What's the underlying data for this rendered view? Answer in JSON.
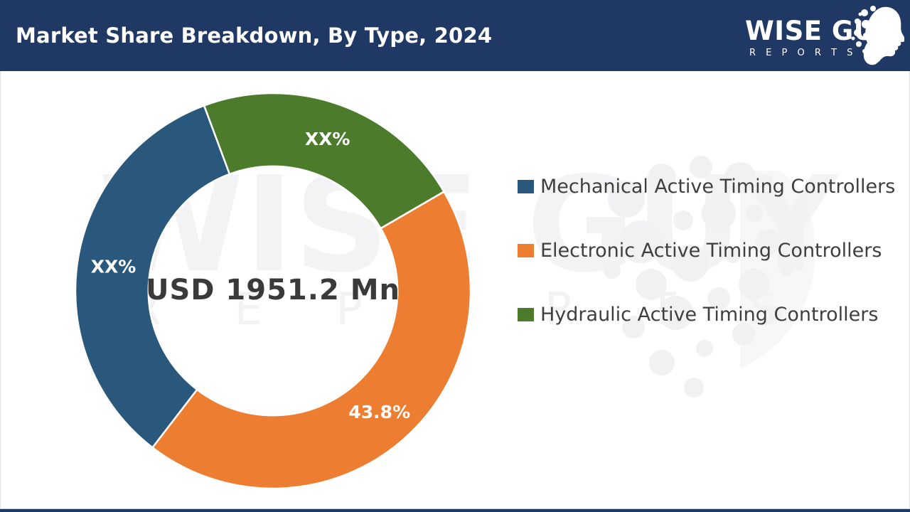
{
  "header": {
    "title": "Market Share Breakdown, By Type, 2024",
    "logo": {
      "line1": "WISE GUY",
      "line2": "R E P O R T S"
    }
  },
  "watermark": {
    "line1": "WISE GUY",
    "line2": "R E P O R T S"
  },
  "chart_data": {
    "type": "donut",
    "title": "Market Share Breakdown, By Type, 2024",
    "center_label": "USD 1951.2 Mn",
    "start_angle_deg": 110.4,
    "direction": "counterclockwise",
    "inner_radius_ratio": 0.63,
    "legend_position": "right",
    "series": [
      {
        "name": "Mechanical Active Timing Controllers",
        "value": 33.9,
        "display_label": "XX%",
        "color": "#29587C"
      },
      {
        "name": "Electronic Active Timing Controllers",
        "value": 43.8,
        "display_label": "43.8%",
        "color": "#ED7D31"
      },
      {
        "name": "Hydraulic Active Timing Controllers",
        "value": 22.3,
        "display_label": "XX%",
        "color": "#4B7B2B"
      }
    ]
  },
  "colors": {
    "header_bg": "#203864",
    "center_text": "#3A3A3A",
    "legend_text": "#3F3F3F",
    "watermark": "#F3F3F6"
  }
}
